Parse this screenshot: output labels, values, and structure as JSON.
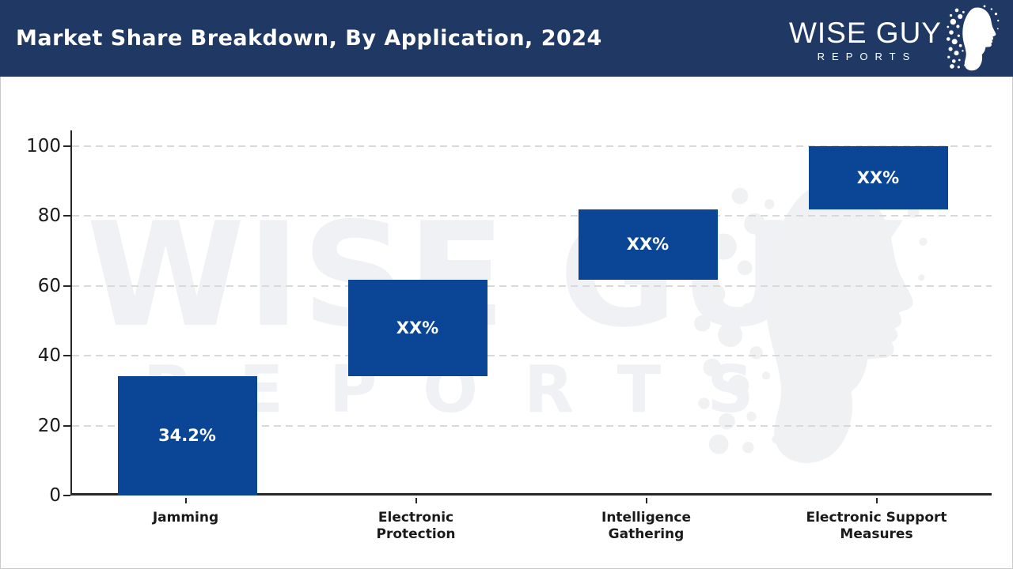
{
  "header": {
    "title": "Market Share Breakdown, By Application, 2024",
    "bg_color": "#1f3864",
    "logo": {
      "wordmark": "WISE GUY",
      "subtitle": "REPORTS"
    }
  },
  "watermark": {
    "line1": "WISE GUY",
    "line2": "REPORTS"
  },
  "chart_data": {
    "type": "bar",
    "subtype": "waterfall-floating-bars",
    "title": "Market Share Breakdown, By Application, 2024",
    "categories": [
      "Jamming",
      "Electronic Protection",
      "Intelligence Gathering",
      "Electronic Support Measures"
    ],
    "display_lines": [
      [
        "Jamming"
      ],
      [
        "Electronic",
        "Protection"
      ],
      [
        "Intelligence",
        "Gathering"
      ],
      [
        "Electronic Support",
        "Measures"
      ]
    ],
    "bars": [
      {
        "category": "Jamming",
        "start": 0,
        "end": 34.2,
        "label": "34.2%"
      },
      {
        "category": "Electronic Protection",
        "start": 34.2,
        "end": 61.8,
        "label": "XX%"
      },
      {
        "category": "Intelligence Gathering",
        "start": 61.8,
        "end": 82,
        "label": "XX%"
      },
      {
        "category": "Electronic Support Measures",
        "start": 82,
        "end": 100,
        "label": "XX%"
      }
    ],
    "yticks": [
      0,
      20,
      40,
      60,
      80,
      100
    ],
    "ylim": [
      0,
      100
    ],
    "grid": true,
    "legend_position": "none",
    "gridline_color": "#d9d9d9",
    "bar_color": "#0a4596",
    "bar_label_color": "#ffffff",
    "axis_color": "#262626"
  }
}
